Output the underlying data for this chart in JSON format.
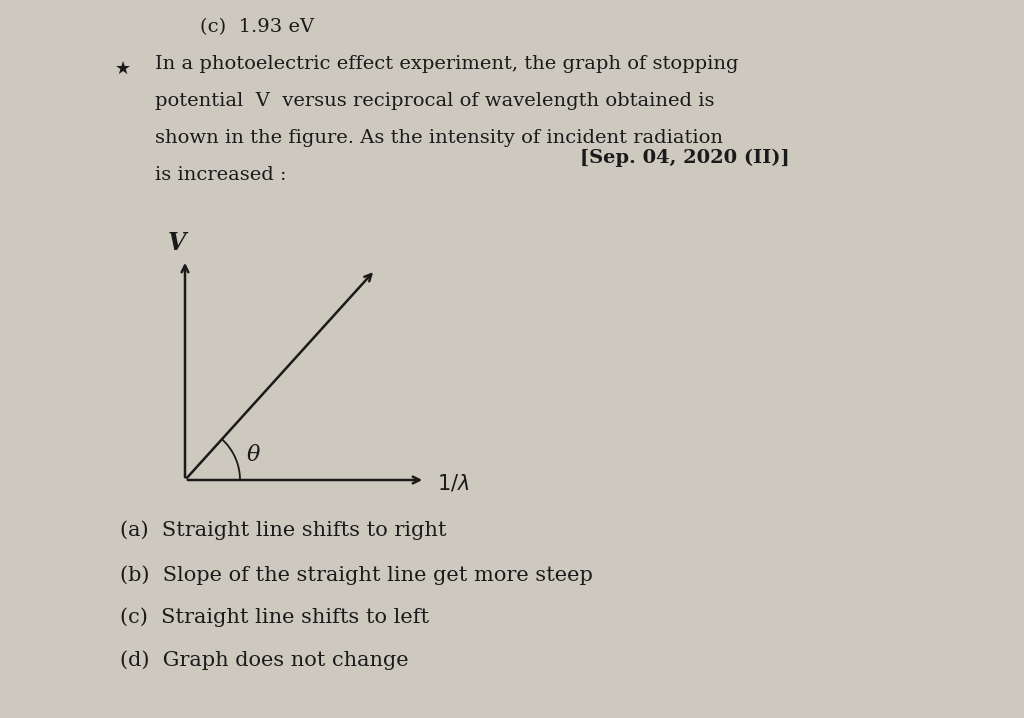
{
  "bg_color": "#cdc9be",
  "text_color": "#1a1a1a",
  "line_color": "#1a1a1a",
  "title_c": "(c)  1.93 eV",
  "q_line1": "In a photoelectric effect experiment, the graph of stopping",
  "q_line2": "potential  V  versus reciprocal of wavelength obtained is",
  "q_line3": "shown in the figure. As the intensity of incident radiation",
  "q_line4": "is increased :",
  "date_ref": "[Sep. 04, 2020 (II)]",
  "graph_ylabel": "V",
  "graph_angle": "θ",
  "graph_xlabel": "1/λ",
  "options": [
    "(a)  Straight line shifts to right",
    "(b)  Slope of the straight line get more steep",
    "(c)  Straight line shifts to left",
    "(d)  Graph does not change"
  ],
  "fs_title": 14,
  "fs_q": 14,
  "fs_opt": 15,
  "fs_graph": 15
}
